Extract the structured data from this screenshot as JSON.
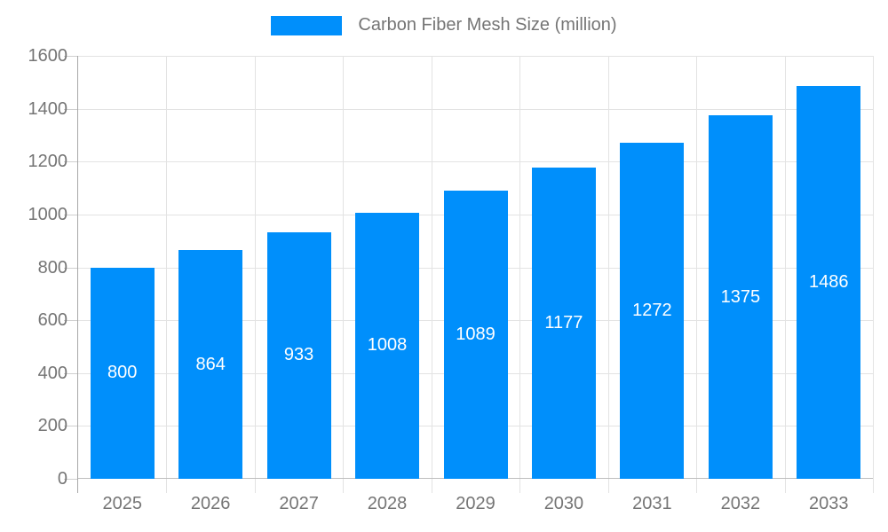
{
  "legend": {
    "label": "Carbon Fiber Mesh Size (million)"
  },
  "chart_data": {
    "type": "bar",
    "title": "Carbon Fiber Mesh Size (million)",
    "categories": [
      "2025",
      "2026",
      "2027",
      "2028",
      "2029",
      "2030",
      "2031",
      "2032",
      "2033"
    ],
    "series": [
      {
        "name": "Carbon Fiber Mesh Size (million)",
        "values": [
          800,
          864,
          933,
          1008,
          1089,
          1177,
          1272,
          1375,
          1486
        ]
      }
    ],
    "value_labels": [
      "800",
      "864",
      "933",
      "1008",
      "1089",
      "1177",
      "1272",
      "1375",
      "1486"
    ],
    "xlabel": "",
    "ylabel": "",
    "ylim": [
      0,
      1600
    ],
    "ytick_step": 200,
    "yticks": [
      0,
      200,
      400,
      600,
      800,
      1000,
      1200,
      1400,
      1600
    ],
    "grid": true,
    "legend_position": "top",
    "colors": {
      "bar": "#008FFB",
      "bar_label": "#ffffff",
      "axis_text": "#757575",
      "gridline": "#e3e3e3",
      "axis_line": "#a8a8a8",
      "tick": "#cfcfcf"
    }
  }
}
